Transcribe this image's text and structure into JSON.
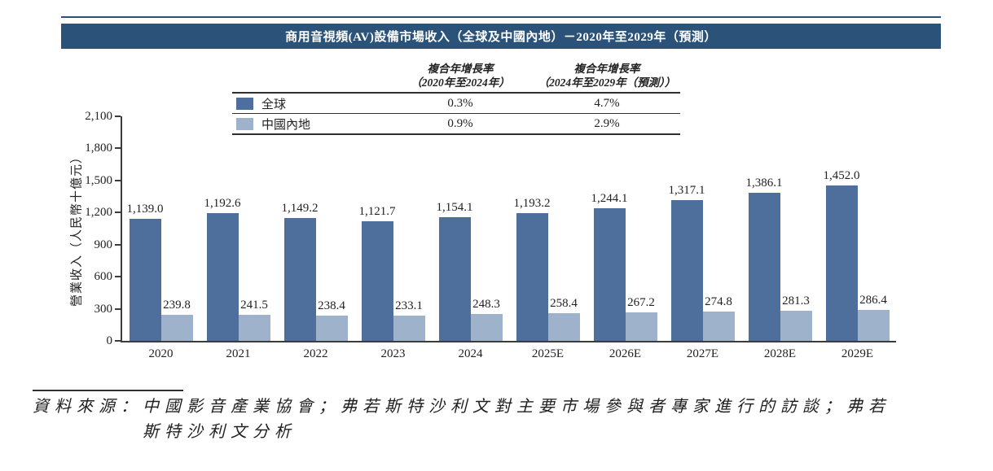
{
  "title": "商用音視頻(AV)設備市場收入（全球及中國內地）－2020年至2029年（預測）",
  "colors": {
    "header_bg": "#2b5379",
    "global_bar": "#4e6f9c",
    "china_bar": "#9fb2cc",
    "axis": "#3c3c3c"
  },
  "legend_table": {
    "col1_header_line1": "複合年增長率",
    "col1_header_line2": "（2020年至2024年）",
    "col2_header_line1": "複合年增長率",
    "col2_header_line2": "（2024年至2029年（預測））",
    "rows": [
      {
        "label": "全球",
        "color": "#4e6f9c",
        "cagr_2020_2024": "0.3%",
        "cagr_2024_2029": "4.7%"
      },
      {
        "label": "中國內地",
        "color": "#9fb2cc",
        "cagr_2020_2024": "0.9%",
        "cagr_2024_2029": "2.9%"
      }
    ]
  },
  "chart_data": {
    "type": "bar",
    "title": "商用音視頻(AV)設備市場收入（全球及中國內地）－2020年至2029年（預測）",
    "xlabel": "",
    "ylabel": "營業收入（人民幣十億元）",
    "ylim": [
      0,
      2100
    ],
    "grid": false,
    "legend_position": "top-table",
    "categories": [
      "2020",
      "2021",
      "2022",
      "2023",
      "2024",
      "2025E",
      "2026E",
      "2027E",
      "2028E",
      "2029E"
    ],
    "yticks": [
      {
        "value": 0,
        "label": "0"
      },
      {
        "value": 300,
        "label": "300"
      },
      {
        "value": 600,
        "label": "600"
      },
      {
        "value": 900,
        "label": "900"
      },
      {
        "value": 1200,
        "label": "1,200"
      },
      {
        "value": 1500,
        "label": "1,500"
      },
      {
        "value": 1800,
        "label": "1,800"
      },
      {
        "value": 2100,
        "label": "2,100"
      }
    ],
    "series": [
      {
        "key": "global",
        "name": "全球",
        "color": "#4e6f9c",
        "cagr_2020_2024": "0.3%",
        "cagr_2024_2029": "4.7%",
        "values": [
          1139.0,
          1192.6,
          1149.2,
          1121.7,
          1154.1,
          1193.2,
          1244.1,
          1317.1,
          1386.1,
          1452.0
        ],
        "labels": [
          "1,139.0",
          "1,192.6",
          "1,149.2",
          "1,121.7",
          "1,154.1",
          "1,193.2",
          "1,244.1",
          "1,317.1",
          "1,386.1",
          "1,452.0"
        ]
      },
      {
        "key": "china",
        "name": "中國內地",
        "color": "#9fb2cc",
        "cagr_2020_2024": "0.9%",
        "cagr_2024_2029": "2.9%",
        "values": [
          239.8,
          241.5,
          238.4,
          233.1,
          248.3,
          258.4,
          267.2,
          274.8,
          281.3,
          286.4
        ],
        "labels": [
          "239.8",
          "241.5",
          "238.4",
          "233.1",
          "248.3",
          "258.4",
          "267.2",
          "274.8",
          "281.3",
          "286.4"
        ]
      }
    ]
  },
  "source_note": {
    "line1": "資料來源：中國影音產業協會；弗若斯特沙利文對主要市場參與者專家進行的訪談；弗若",
    "line2": "斯特沙利文分析",
    "full_text": "資料來源：中國影音產業協會；弗若斯特沙利文對主要市場參與者專家進行的訪談；弗若斯特沙利文分析"
  }
}
